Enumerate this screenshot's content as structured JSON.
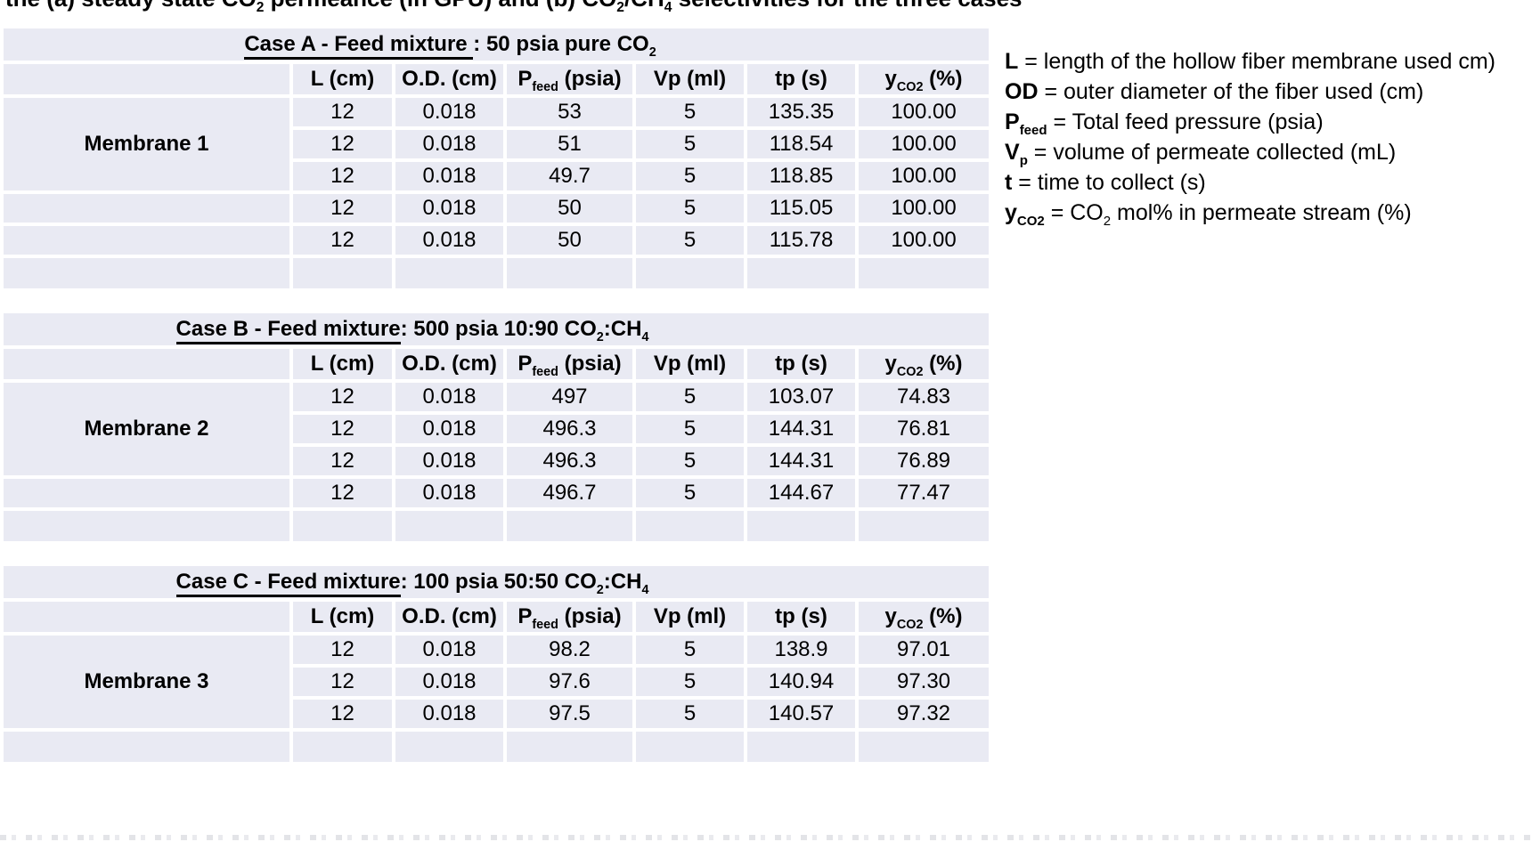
{
  "caption_top": {
    "p1": "the (a) steady state CO",
    "s1": "2",
    "p2": " permeance (in GPU) and (b) CO",
    "s2": "2",
    "p3": "/CH",
    "s3": "4",
    "p4": " selectivities for the three cases"
  },
  "columns": [
    {
      "pre": "L (cm)",
      "sub": "",
      "post": ""
    },
    {
      "pre": "O.D. (cm)",
      "sub": "",
      "post": ""
    },
    {
      "pre": "P",
      "sub": "feed",
      "post": " (psia)"
    },
    {
      "pre": "Vp (ml)",
      "sub": "",
      "post": ""
    },
    {
      "pre": "tp (s)",
      "sub": "",
      "post": ""
    },
    {
      "pre": "y",
      "sub": "CO2",
      "post": " (%)"
    }
  ],
  "cases": [
    {
      "title": {
        "u": "Case A - Feed mixture ",
        "p1": ": 50 psia pure CO",
        "s1": "2",
        "p2": "",
        "s2": ""
      },
      "membrane": "Membrane 1",
      "rows": [
        [
          "12",
          "0.018",
          "53",
          "5",
          "135.35",
          "100.00"
        ],
        [
          "12",
          "0.018",
          "51",
          "5",
          "118.54",
          "100.00"
        ],
        [
          "12",
          "0.018",
          "49.7",
          "5",
          "118.85",
          "100.00"
        ],
        [
          "12",
          "0.018",
          "50",
          "5",
          "115.05",
          "100.00"
        ],
        [
          "12",
          "0.018",
          "50",
          "5",
          "115.78",
          "100.00"
        ]
      ]
    },
    {
      "title": {
        "u": "Case B - Feed mixture",
        "p1": ": 500 psia 10:90 CO",
        "s1": "2",
        "p2": ":CH",
        "s2": "4"
      },
      "membrane": "Membrane 2",
      "rows": [
        [
          "12",
          "0.018",
          "497",
          "5",
          "103.07",
          "74.83"
        ],
        [
          "12",
          "0.018",
          "496.3",
          "5",
          "144.31",
          "76.81"
        ],
        [
          "12",
          "0.018",
          "496.3",
          "5",
          "144.31",
          "76.89"
        ],
        [
          "12",
          "0.018",
          "496.7",
          "5",
          "144.67",
          "77.47"
        ]
      ]
    },
    {
      "title": {
        "u": "Case C - Feed mixture",
        "p1": ": 100 psia 50:50 CO",
        "s1": "2",
        "p2": ":CH",
        "s2": "4"
      },
      "membrane": "Membrane 3",
      "rows": [
        [
          "12",
          "0.018",
          "98.2",
          "5",
          "138.9",
          "97.01"
        ],
        [
          "12",
          "0.018",
          "97.6",
          "5",
          "140.94",
          "97.30"
        ],
        [
          "12",
          "0.018",
          "97.5",
          "5",
          "140.57",
          "97.32"
        ]
      ]
    }
  ],
  "legend": [
    {
      "sym": "L",
      "symsub": "",
      "t1": " = length of the hollow fiber membrane used cm)",
      "s1": "",
      "t2": ""
    },
    {
      "sym": "OD",
      "symsub": "",
      "t1": " = outer diameter of the fiber used (cm)",
      "s1": "",
      "t2": ""
    },
    {
      "sym": "P",
      "symsub": "feed",
      "t1": " = Total feed pressure (psia)",
      "s1": "",
      "t2": ""
    },
    {
      "sym": "V",
      "symsub": "p",
      "t1": " = volume of permeate collected (mL)",
      "s1": "",
      "t2": ""
    },
    {
      "sym": "t",
      "symsub": "",
      "t1": " = time to collect (s)",
      "s1": "",
      "t2": ""
    },
    {
      "sym": "y",
      "symsub": "CO2",
      "t1": " = CO",
      "s1": "2",
      "t2": " mol% in permeate stream (%)"
    }
  ],
  "colors": {
    "cell_bg": "#e9eaf3",
    "grid": "#ffffff",
    "text": "#000000"
  }
}
